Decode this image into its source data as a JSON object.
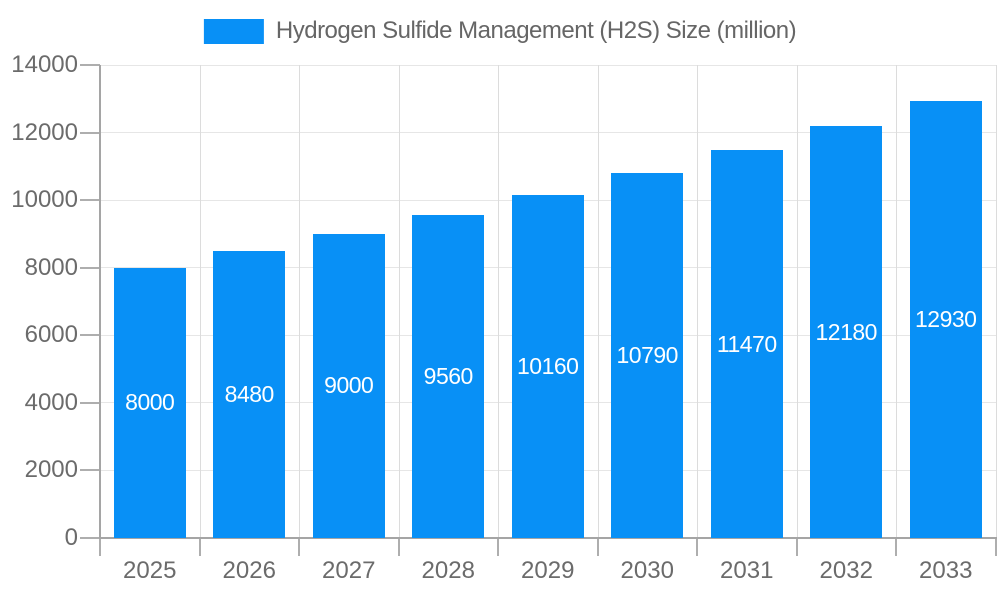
{
  "chart_data": {
    "type": "bar",
    "title": "Hydrogen Sulfide Management (H2S) Size (million)",
    "categories": [
      "2025",
      "2026",
      "2027",
      "2028",
      "2029",
      "2030",
      "2031",
      "2032",
      "2033"
    ],
    "values": [
      8000,
      8480,
      9000,
      9560,
      10160,
      10790,
      11470,
      12180,
      12930
    ],
    "xlabel": "",
    "ylabel": "",
    "ylim": [
      0,
      14000
    ],
    "ytick_step": 2000,
    "yticks": [
      0,
      2000,
      4000,
      6000,
      8000,
      10000,
      12000,
      14000
    ],
    "grid": true,
    "legend_position": "top-center",
    "value_labels": "inside-center",
    "colors": {
      "bar": "#0890f6",
      "bar_value_label": "#ffffff",
      "axis_labels": "#6b6b6b",
      "legend_text": "#666666",
      "gridline_horizontal": "#e6e6e6",
      "gridline_vertical": "#dcdcdc",
      "axis_line": "#a5a5a5",
      "background": "#ffffff"
    }
  }
}
